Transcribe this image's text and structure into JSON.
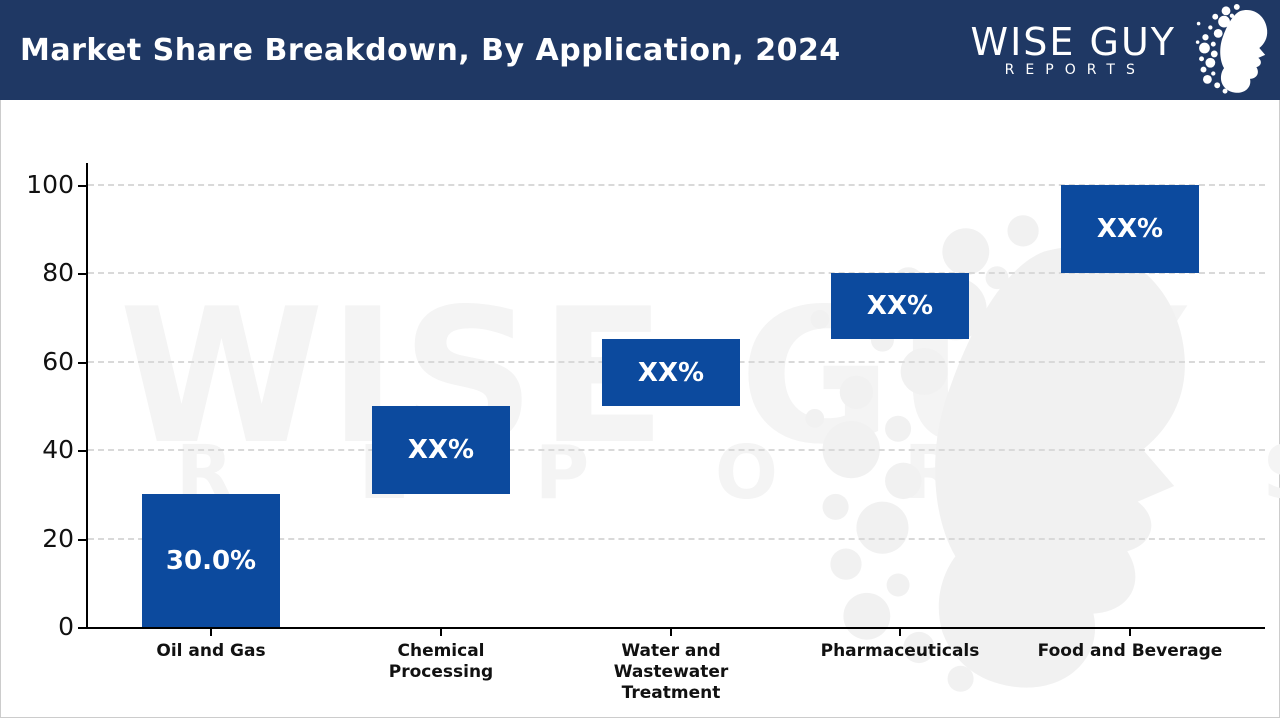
{
  "header": {
    "title": "Market Share Breakdown, By Application, 2024",
    "logo": {
      "name": "WISE GUY",
      "sub": "REPORTS"
    }
  },
  "watermark": {
    "line1": "WISE GUY",
    "line2": "R E P O R T S"
  },
  "colors": {
    "header_bg": "#1f3864",
    "bar": "#0c4a9e",
    "grid": "#d9d9d9",
    "watermark": "#f4f4f4",
    "axis": "#000000"
  },
  "chart_data": {
    "type": "bar",
    "variant": "waterfall",
    "title": "Market Share Breakdown, By Application, 2024",
    "xlabel": "",
    "ylabel": "",
    "categories": [
      "Oil and Gas",
      "Chemical Processing",
      "Water and Wastewater Treatment",
      "Pharmaceuticals",
      "Food and Beverage"
    ],
    "category_lines": [
      [
        "Oil and Gas"
      ],
      [
        "Chemical",
        "Processing"
      ],
      [
        "Water and",
        "Wastewater",
        "Treatment"
      ],
      [
        "Pharmaceuticals"
      ],
      [
        "Food and Beverage"
      ]
    ],
    "segments": [
      {
        "start": 0,
        "end": 30
      },
      {
        "start": 30,
        "end": 50
      },
      {
        "start": 50,
        "end": 65
      },
      {
        "start": 65,
        "end": 80
      },
      {
        "start": 80,
        "end": 100
      }
    ],
    "values": [
      30,
      20,
      15,
      15,
      20
    ],
    "bar_labels": [
      "30.0%",
      "XX%",
      "XX%",
      "XX%",
      "XX%"
    ],
    "yticks": [
      0,
      20,
      40,
      60,
      80,
      100
    ],
    "ylim": [
      0,
      105
    ],
    "grid": true,
    "legend": false
  }
}
